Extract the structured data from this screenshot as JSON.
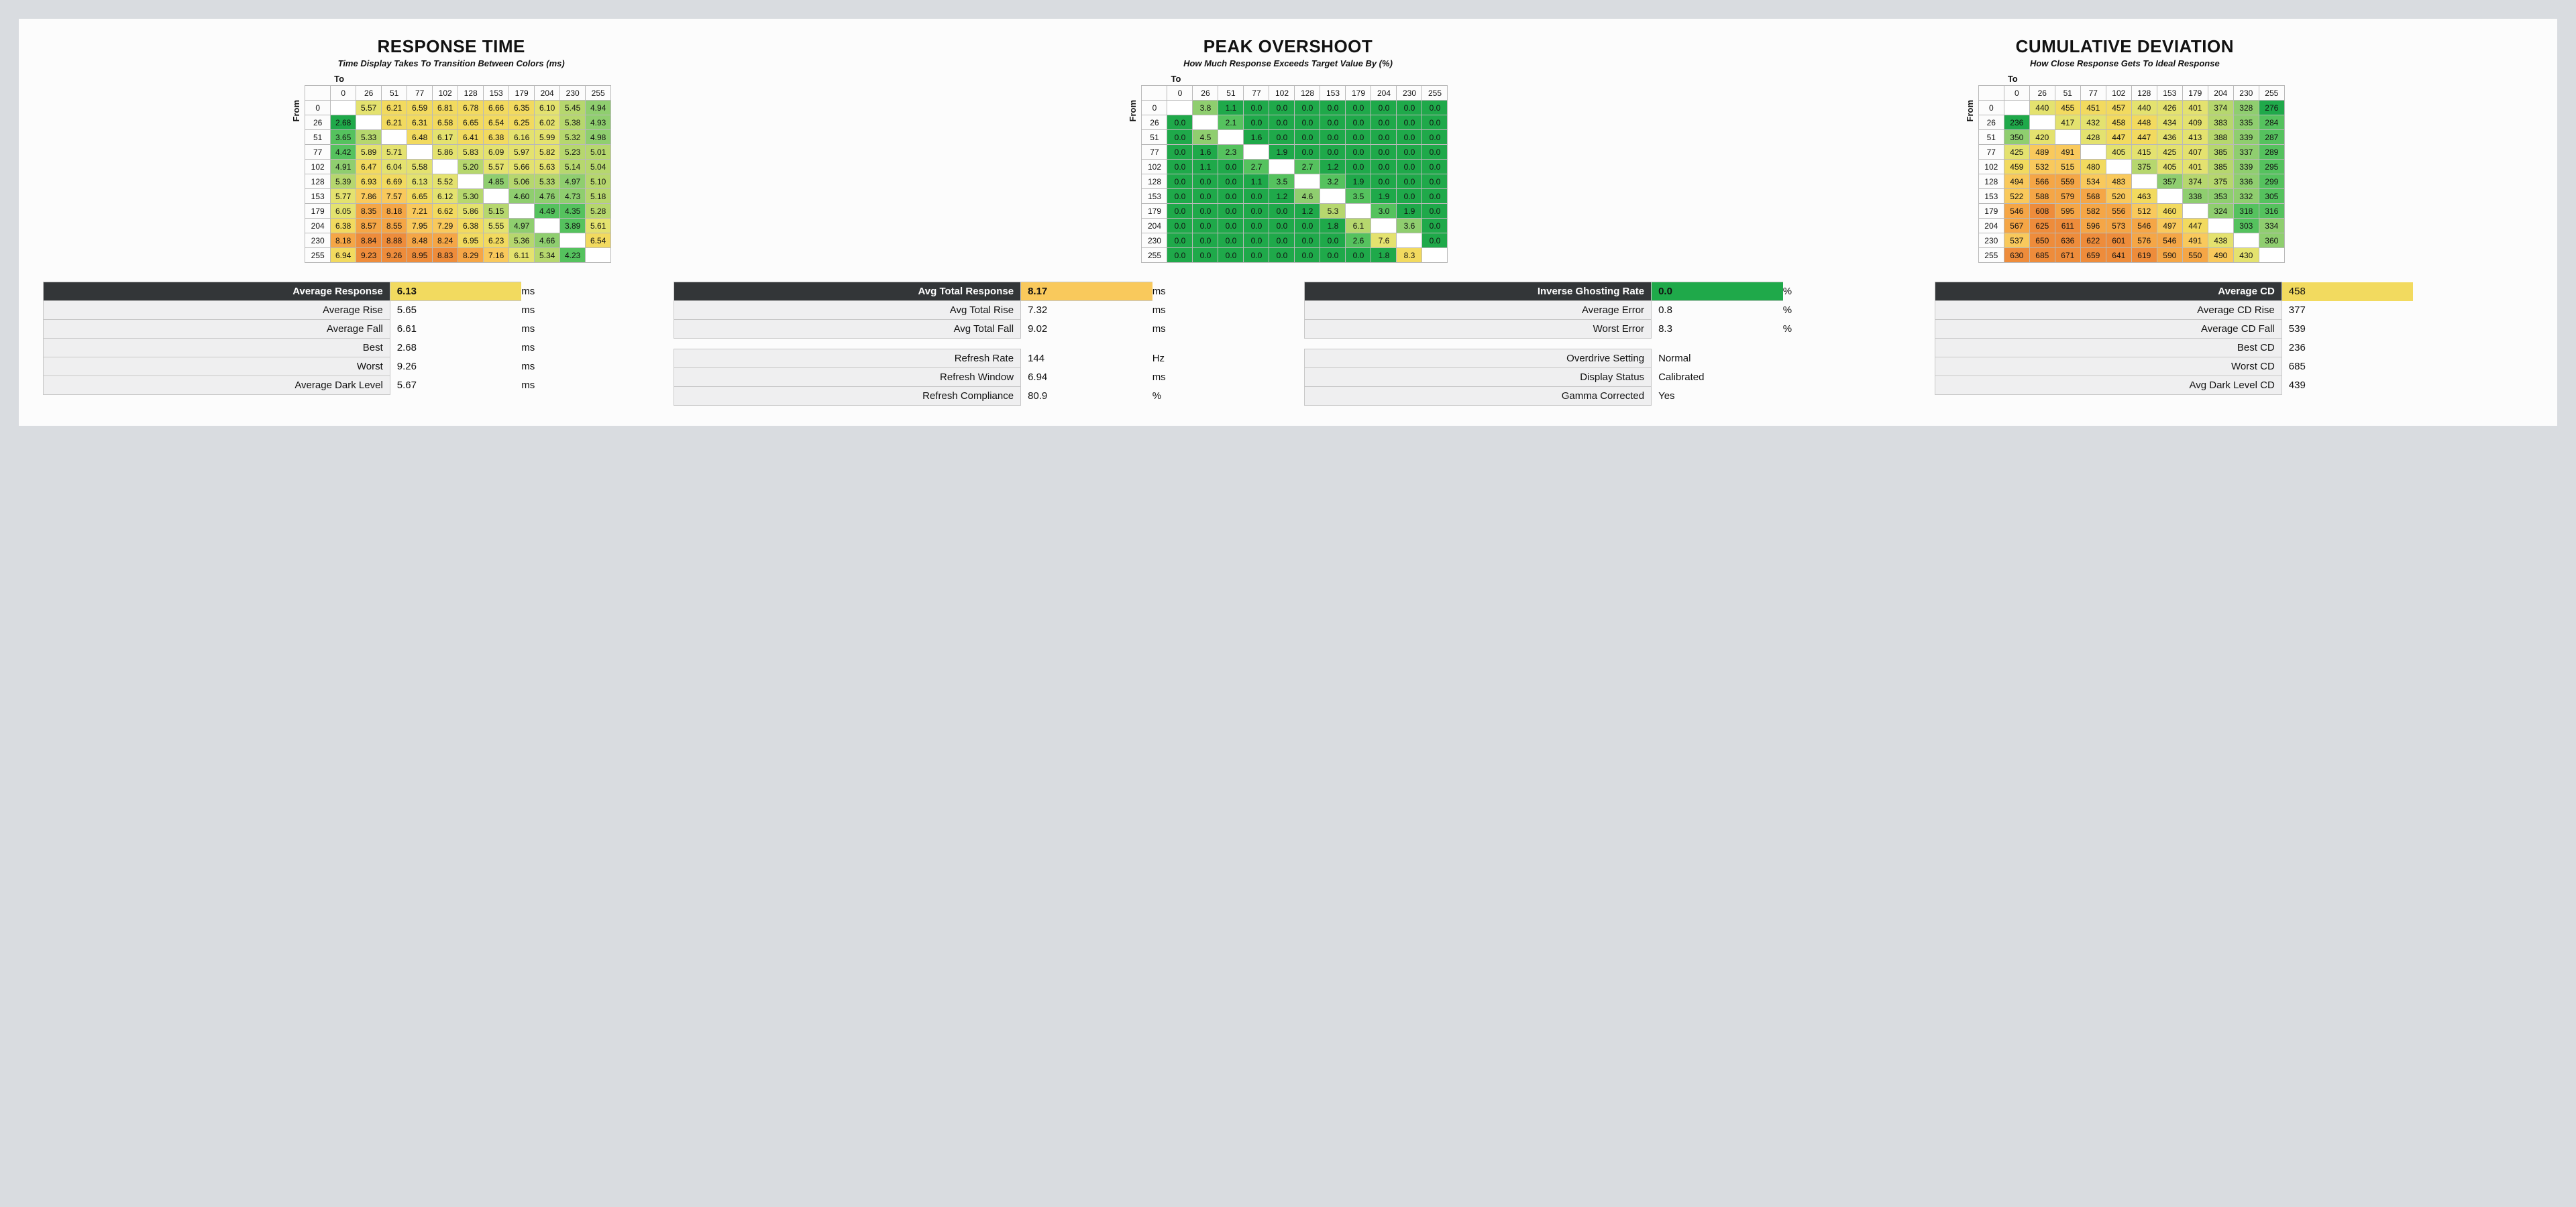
{
  "levels": [
    0,
    26,
    51,
    77,
    102,
    128,
    153,
    179,
    204,
    230,
    255
  ],
  "axis_to": "To",
  "axis_from": "From",
  "colors": {
    "green_strong": "#1fa94a",
    "green": "#55c25e",
    "green_light": "#8fce6f",
    "yellowgreen": "#b6d76e",
    "yellow": "#e4e26f",
    "yellow_strong": "#f2da5f",
    "orange_light": "#f9c95c",
    "orange": "#f5a646",
    "orange_strong": "#ee8c3b",
    "diag": "#ffffff"
  },
  "heatmaps": [
    {
      "key": "response_time",
      "title": "RESPONSE TIME",
      "subtitle": "Time Display Takes To Transition Between Colors (ms)",
      "decimals": 2,
      "cells": [
        [
          null,
          5.57,
          6.21,
          6.59,
          6.81,
          6.78,
          6.66,
          6.35,
          6.1,
          5.45,
          4.94
        ],
        [
          2.68,
          null,
          6.21,
          6.31,
          6.58,
          6.65,
          6.54,
          6.25,
          6.02,
          5.38,
          4.93
        ],
        [
          3.65,
          5.33,
          null,
          6.48,
          6.17,
          6.41,
          6.38,
          6.16,
          5.99,
          5.32,
          4.98
        ],
        [
          4.42,
          5.89,
          5.71,
          null,
          5.86,
          5.83,
          6.09,
          5.97,
          5.82,
          5.23,
          5.01
        ],
        [
          4.91,
          6.47,
          6.04,
          5.58,
          null,
          5.2,
          5.57,
          5.66,
          5.63,
          5.14,
          5.04
        ],
        [
          5.39,
          6.93,
          6.69,
          6.13,
          5.52,
          null,
          4.85,
          5.06,
          5.33,
          4.97,
          5.1
        ],
        [
          5.77,
          7.86,
          7.57,
          6.65,
          6.12,
          5.3,
          null,
          4.6,
          4.76,
          4.73,
          5.18
        ],
        [
          6.05,
          8.35,
          8.18,
          7.21,
          6.62,
          5.86,
          5.15,
          null,
          4.49,
          4.35,
          5.28
        ],
        [
          6.38,
          8.57,
          8.55,
          7.95,
          7.29,
          6.38,
          5.55,
          4.97,
          null,
          3.89,
          5.61
        ],
        [
          8.18,
          8.84,
          8.88,
          8.48,
          8.24,
          6.95,
          6.23,
          5.36,
          4.66,
          null,
          6.54
        ],
        [
          6.94,
          9.23,
          9.26,
          8.95,
          8.83,
          8.29,
          7.16,
          6.11,
          5.34,
          4.23,
          null
        ]
      ],
      "thresholds": [
        {
          "max": 3.5,
          "color": "green_strong"
        },
        {
          "max": 4.5,
          "color": "green"
        },
        {
          "max": 5.0,
          "color": "green_light"
        },
        {
          "max": 5.5,
          "color": "yellowgreen"
        },
        {
          "max": 6.2,
          "color": "yellow"
        },
        {
          "max": 7.0,
          "color": "yellow_strong"
        },
        {
          "max": 8.0,
          "color": "orange_light"
        },
        {
          "max": 8.7,
          "color": "orange"
        },
        {
          "max": 100,
          "color": "orange_strong"
        }
      ]
    },
    {
      "key": "peak_overshoot",
      "title": "PEAK OVERSHOOT",
      "subtitle": "How Much Response Exceeds Target Value By (%)",
      "decimals": 1,
      "cells": [
        [
          null,
          3.8,
          1.1,
          0.0,
          0.0,
          0.0,
          0.0,
          0.0,
          0.0,
          0.0,
          0.0
        ],
        [
          0.0,
          null,
          2.1,
          0.0,
          0.0,
          0.0,
          0.0,
          0.0,
          0.0,
          0.0,
          0.0
        ],
        [
          0.0,
          4.5,
          null,
          1.6,
          0.0,
          0.0,
          0.0,
          0.0,
          0.0,
          0.0,
          0.0
        ],
        [
          0.0,
          1.6,
          2.3,
          null,
          1.9,
          0.0,
          0.0,
          0.0,
          0.0,
          0.0,
          0.0
        ],
        [
          0.0,
          1.1,
          0.0,
          2.7,
          null,
          2.7,
          1.2,
          0.0,
          0.0,
          0.0,
          0.0
        ],
        [
          0.0,
          0.0,
          0.0,
          1.1,
          3.5,
          null,
          3.2,
          1.9,
          0.0,
          0.0,
          0.0
        ],
        [
          0.0,
          0.0,
          0.0,
          0.0,
          1.2,
          4.6,
          null,
          3.5,
          1.9,
          0.0,
          0.0
        ],
        [
          0.0,
          0.0,
          0.0,
          0.0,
          0.0,
          1.2,
          5.3,
          null,
          3.0,
          1.9,
          0.0
        ],
        [
          0.0,
          0.0,
          0.0,
          0.0,
          0.0,
          0.0,
          1.8,
          6.1,
          null,
          3.6,
          0.0
        ],
        [
          0.0,
          0.0,
          0.0,
          0.0,
          0.0,
          0.0,
          0.0,
          2.6,
          7.6,
          null,
          0.0
        ],
        [
          0.0,
          0.0,
          0.0,
          0.0,
          0.0,
          0.0,
          0.0,
          0.0,
          1.8,
          8.3,
          null
        ]
      ],
      "thresholds": [
        {
          "max": 0.5,
          "color": "green_strong"
        },
        {
          "max": 2.0,
          "color": "green_strong"
        },
        {
          "max": 3.5,
          "color": "green"
        },
        {
          "max": 5.0,
          "color": "green_light"
        },
        {
          "max": 6.5,
          "color": "yellowgreen"
        },
        {
          "max": 8.0,
          "color": "yellow"
        },
        {
          "max": 100,
          "color": "yellow_strong"
        }
      ]
    },
    {
      "key": "cumulative_deviation",
      "title": "CUMULATIVE DEVIATION",
      "subtitle": "How Close Response Gets To Ideal Response",
      "decimals": 0,
      "cells": [
        [
          null,
          440,
          455,
          451,
          457,
          440,
          426,
          401,
          374,
          328,
          276
        ],
        [
          236,
          null,
          417,
          432,
          458,
          448,
          434,
          409,
          383,
          335,
          284
        ],
        [
          350,
          420,
          null,
          428,
          447,
          447,
          436,
          413,
          388,
          339,
          287
        ],
        [
          425,
          489,
          491,
          null,
          405,
          415,
          425,
          407,
          385,
          337,
          289
        ],
        [
          459,
          532,
          515,
          480,
          null,
          375,
          405,
          401,
          385,
          339,
          295
        ],
        [
          494,
          566,
          559,
          534,
          483,
          null,
          357,
          374,
          375,
          336,
          299
        ],
        [
          522,
          588,
          579,
          568,
          520,
          463,
          null,
          338,
          353,
          332,
          305
        ],
        [
          546,
          608,
          595,
          582,
          556,
          512,
          460,
          null,
          324,
          318,
          316
        ],
        [
          567,
          625,
          611,
          596,
          573,
          546,
          497,
          447,
          null,
          303,
          334
        ],
        [
          537,
          650,
          636,
          622,
          601,
          576,
          546,
          491,
          438,
          null,
          360
        ],
        [
          630,
          685,
          671,
          659,
          641,
          619,
          590,
          550,
          490,
          430,
          null
        ]
      ],
      "thresholds": [
        {
          "max": 280,
          "color": "green_strong"
        },
        {
          "max": 320,
          "color": "green"
        },
        {
          "max": 360,
          "color": "green_light"
        },
        {
          "max": 400,
          "color": "yellowgreen"
        },
        {
          "max": 440,
          "color": "yellow"
        },
        {
          "max": 480,
          "color": "yellow_strong"
        },
        {
          "max": 540,
          "color": "orange_light"
        },
        {
          "max": 600,
          "color": "orange"
        },
        {
          "max": 10000,
          "color": "orange_strong"
        }
      ]
    }
  ],
  "stat_groups": [
    {
      "key": "response_stats",
      "rows": [
        {
          "label": "Average Response",
          "value": "6.13",
          "unit": "ms",
          "highlight": true,
          "value_bg": "yellow_strong"
        },
        {
          "label": "Average Rise",
          "value": "5.65",
          "unit": "ms"
        },
        {
          "label": "Average Fall",
          "value": "6.61",
          "unit": "ms"
        },
        {
          "label": "Best",
          "value": "2.68",
          "unit": "ms"
        },
        {
          "label": "Worst",
          "value": "9.26",
          "unit": "ms"
        },
        {
          "label": "Average Dark Level",
          "value": "5.67",
          "unit": "ms"
        }
      ]
    },
    {
      "key": "total_response_stats",
      "rows": [
        {
          "label": "Avg Total Response",
          "value": "8.17",
          "unit": "ms",
          "highlight": true,
          "value_bg": "orange_light"
        },
        {
          "label": "Avg Total Rise",
          "value": "7.32",
          "unit": "ms"
        },
        {
          "label": "Avg Total Fall",
          "value": "9.02",
          "unit": "ms"
        },
        {
          "gap": true
        },
        {
          "label": "Refresh Rate",
          "value": "144",
          "unit": "Hz"
        },
        {
          "label": "Refresh Window",
          "value": "6.94",
          "unit": "ms"
        },
        {
          "label": "Refresh Compliance",
          "value": "80.9",
          "unit": "%"
        }
      ]
    },
    {
      "key": "overshoot_stats",
      "rows": [
        {
          "label": "Inverse Ghosting Rate",
          "value": "0.0",
          "unit": "%",
          "highlight": true,
          "value_bg": "green_strong"
        },
        {
          "label": "Average Error",
          "value": "0.8",
          "unit": "%"
        },
        {
          "label": "Worst Error",
          "value": "8.3",
          "unit": "%"
        },
        {
          "gap": true
        },
        {
          "label": "Overdrive Setting",
          "value": "Normal",
          "unit": "",
          "plain": true
        },
        {
          "label": "Display Status",
          "value": "Calibrated",
          "unit": "",
          "plain": true
        },
        {
          "label": "Gamma Corrected",
          "value": "Yes",
          "unit": "",
          "plain": true
        }
      ]
    },
    {
      "key": "cd_stats",
      "rows": [
        {
          "label": "Average CD",
          "value": "458",
          "unit": "",
          "highlight": true,
          "value_bg": "yellow_strong"
        },
        {
          "label": "Average CD Rise",
          "value": "377",
          "unit": ""
        },
        {
          "label": "Average CD Fall",
          "value": "539",
          "unit": ""
        },
        {
          "label": "Best CD",
          "value": "236",
          "unit": ""
        },
        {
          "label": "Worst CD",
          "value": "685",
          "unit": ""
        },
        {
          "label": "Avg Dark Level CD",
          "value": "439",
          "unit": ""
        }
      ]
    }
  ]
}
